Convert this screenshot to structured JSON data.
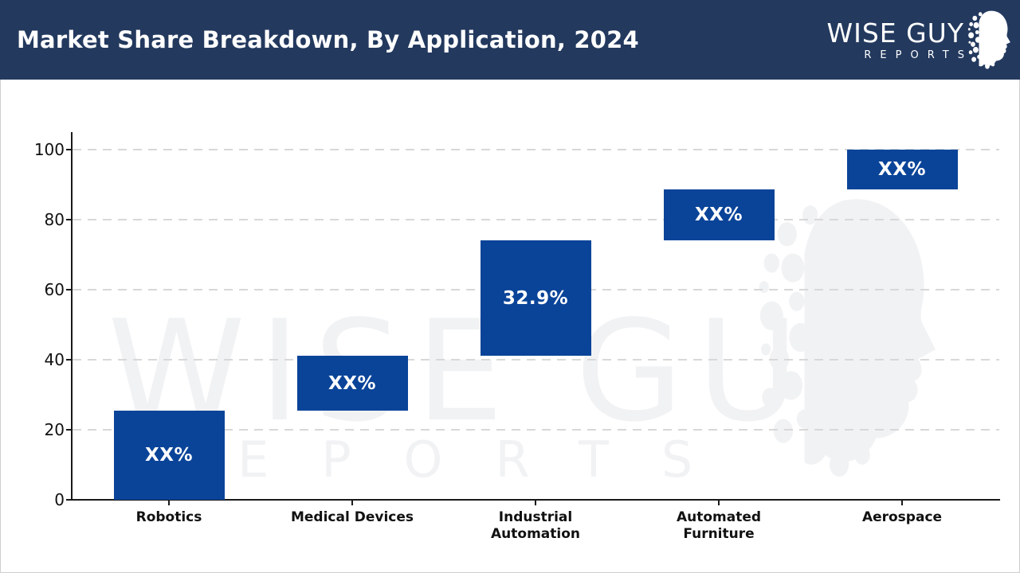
{
  "header": {
    "title": "Market Share Breakdown, By Application, 2024",
    "bg_color": "#23395e",
    "logo": {
      "line1": "WISE GUY",
      "line2": "REPORTS"
    }
  },
  "watermark": {
    "line1": "WISE GUY",
    "line2": "REPORTS"
  },
  "colors": {
    "header_bg": "#23395e",
    "bar": "#0a4499",
    "bar_label": "#ffffff",
    "gridline": "#d8d8d8",
    "axis": "#1a1a1a",
    "watermark": "#f1f2f4",
    "page_border": "#cfcfcf"
  },
  "chart_data": {
    "type": "bar",
    "subtype": "waterfall",
    "title": "Market Share Breakdown, By Application, 2024",
    "xlabel": "",
    "ylabel": "",
    "ylim": [
      0,
      100
    ],
    "yticks": [
      0,
      20,
      40,
      60,
      80,
      100
    ],
    "grid": "dashed-horizontal",
    "legend": "none",
    "bar_color": "#0a4499",
    "bar_label_color": "#ffffff",
    "categories": [
      "Robotics",
      "Medical Devices",
      "Industrial Automation",
      "Automated Furniture",
      "Aerospace"
    ],
    "category_lines": [
      [
        "Robotics"
      ],
      [
        "Medical Devices"
      ],
      [
        "Industrial",
        "Automation"
      ],
      [
        "Automated",
        "Furniture"
      ],
      [
        "Aerospace"
      ]
    ],
    "segments": [
      {
        "category": "Robotics",
        "start": 0,
        "end": 25.4,
        "value_label": "XX%"
      },
      {
        "category": "Medical Devices",
        "start": 25.4,
        "end": 41.0,
        "value_label": "XX%"
      },
      {
        "category": "Industrial Automation",
        "start": 41.0,
        "end": 73.9,
        "value": 32.9,
        "value_label": "32.9%"
      },
      {
        "category": "Automated Furniture",
        "start": 73.9,
        "end": 88.5,
        "value_label": "XX%"
      },
      {
        "category": "Aerospace",
        "start": 88.5,
        "end": 100,
        "value_label": "XX%"
      }
    ]
  }
}
